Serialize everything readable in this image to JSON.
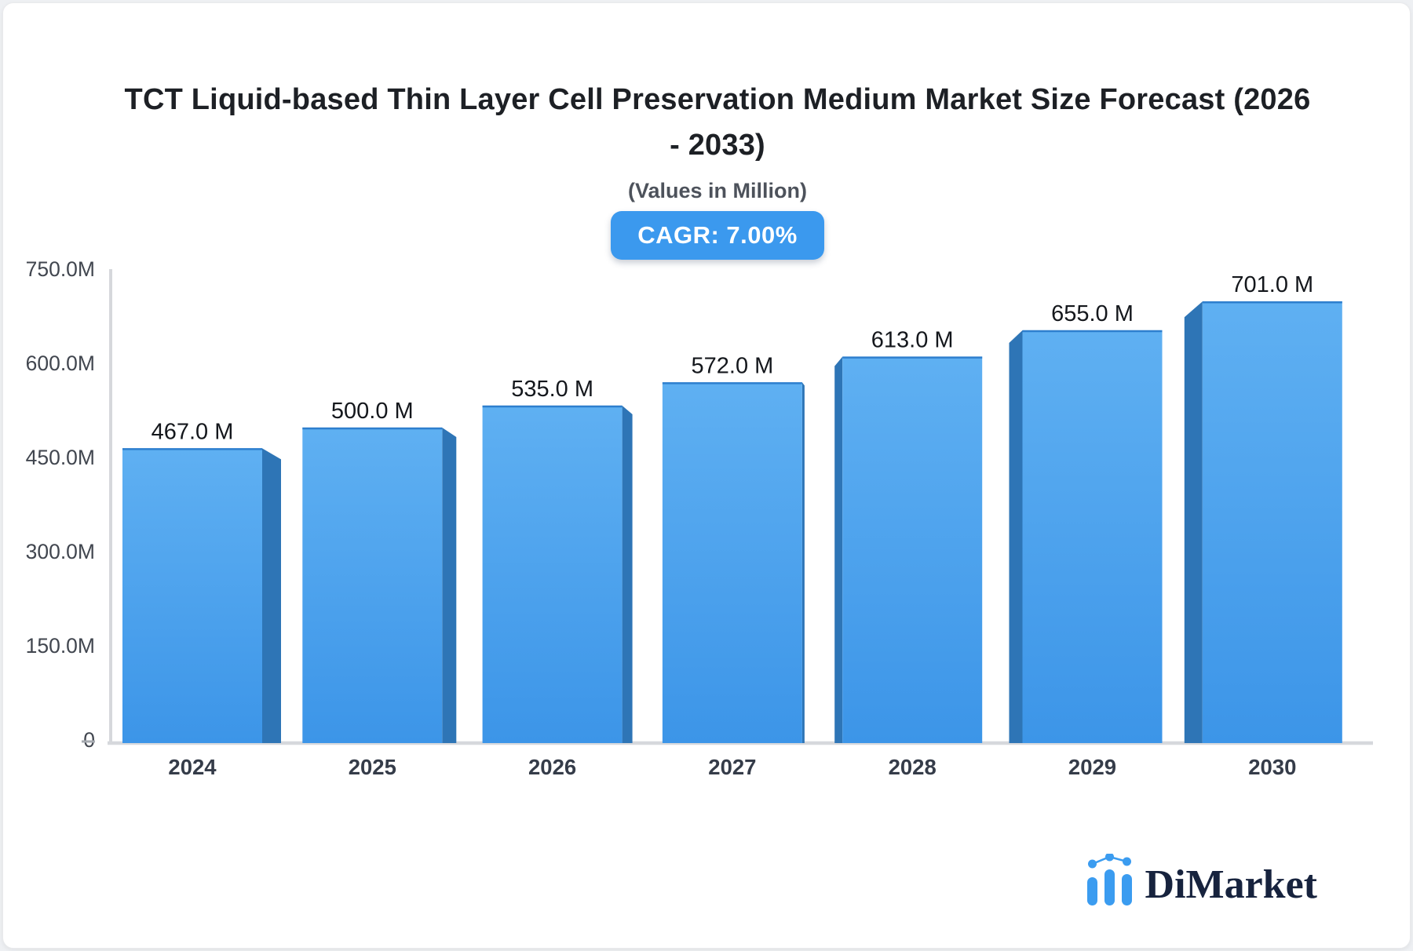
{
  "header": {
    "title_lines": [
      "TCT Liquid-based Thin Layer Cell Preservation Medium Market Size Forecast (2026",
      "- 2033)"
    ],
    "subtitle": "(Values in Million)",
    "cagr_badge": "CAGR: 7.00%"
  },
  "chart_data": {
    "type": "bar",
    "title": "TCT Liquid-based Thin Layer Cell Preservation Medium Market Size Forecast (2026 - 2033)",
    "subtitle": "(Values in Million)",
    "cagr": "7.00%",
    "categories": [
      "2024",
      "2025",
      "2026",
      "2027",
      "2028",
      "2029",
      "2030"
    ],
    "values": [
      467.0,
      500.0,
      535.0,
      572.0,
      613.0,
      655.0,
      701.0
    ],
    "value_labels": [
      "467.0 M",
      "500.0 M",
      "535.0 M",
      "572.0 M",
      "613.0 M",
      "655.0 M",
      "701.0 M"
    ],
    "y_ticks": [
      {
        "value": 750,
        "label": "750.0M"
      },
      {
        "value": 600,
        "label": "600.0M"
      },
      {
        "value": 450,
        "label": "450.0M"
      },
      {
        "value": 300,
        "label": "300.0M"
      },
      {
        "value": 150,
        "label": "150.0M"
      },
      {
        "value": 0,
        "label": "0"
      }
    ],
    "ylim": [
      0,
      750
    ],
    "grid": false,
    "legend": false,
    "colors": {
      "bar_face_top": "#5FB0F2",
      "bar_face_bottom": "#3C95E8",
      "bar_top_edge": "#2E7FCE",
      "bar_side": "#2E75B6",
      "axis": "#D6D8DC",
      "tick_dash": "#A6AAB0",
      "value_label": "#14171C",
      "tick_label": "#41464F",
      "year_label": "#353C49",
      "accent": "#3B99EE"
    }
  },
  "footer": {
    "brand": "DiMarket",
    "logo_icon": "bar-line-chart-icon"
  }
}
